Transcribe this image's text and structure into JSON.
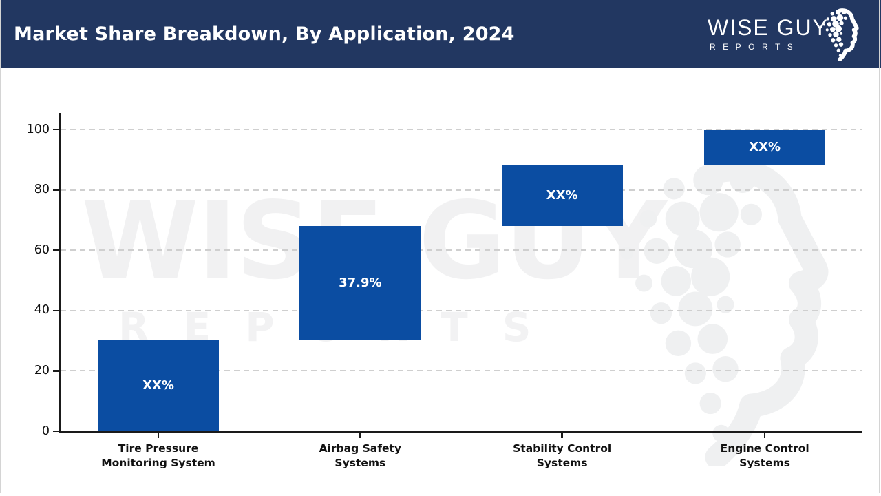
{
  "header": {
    "title": "Market Share Breakdown, By Application, 2024",
    "bg_color": "#223761",
    "logo": {
      "wordmark": "WISE GUY",
      "subtext": "REPORTS"
    }
  },
  "watermark": {
    "wordmark": "WISE GUY",
    "subtext": "REPORTS"
  },
  "chart_data": {
    "type": "bar",
    "variant": "stacked-waterfall",
    "title": "Market Share Breakdown, By Application, 2024",
    "categories": [
      [
        "Tire Pressure",
        "Monitoring System"
      ],
      [
        "Airbag Safety",
        "Systems"
      ],
      [
        "Stability Control",
        "Systems"
      ],
      [
        "Engine Control",
        "Systems"
      ]
    ],
    "bars": [
      {
        "start": 0,
        "end": 30.2,
        "value_label": "XX%"
      },
      {
        "start": 30.2,
        "end": 68.1,
        "value_label": "37.9%"
      },
      {
        "start": 68.1,
        "end": 88.3,
        "value_label": "XX%"
      },
      {
        "start": 88.3,
        "end": 100,
        "value_label": "XX%"
      }
    ],
    "ylim": [
      0,
      100
    ],
    "yticks": [
      0,
      20,
      40,
      60,
      80,
      100
    ],
    "xlabel": "",
    "ylabel": "",
    "grid": {
      "axis": "y",
      "style": "dashed",
      "color": "#cfcfcf"
    },
    "legend": "none",
    "bar_color": "#0b4da2",
    "bar_label_color": "#ffffff",
    "axis_color": "#1a1a1a"
  }
}
